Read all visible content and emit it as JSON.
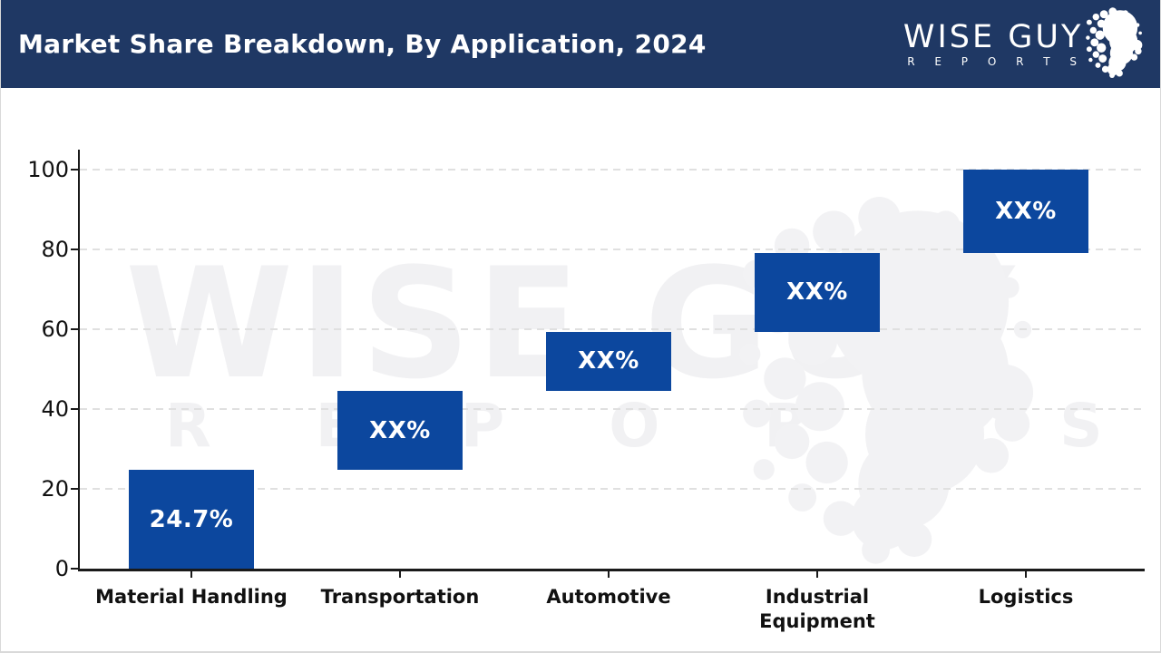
{
  "header": {
    "title": "Market Share Breakdown, By Application, 2024",
    "logo_line1": "WISE GUY",
    "logo_line2": "R E P O R T S"
  },
  "watermark": {
    "line1": "WISE GUY",
    "line2": "R E P O R T S"
  },
  "colors": {
    "header_bg": "#1f3864",
    "bar": "#0c479e",
    "grid": "#e0e0e0",
    "axis": "#1a1a1a",
    "tick_label": "#111111",
    "value_label": "#ffffff",
    "watermark": "#f1f1f3"
  },
  "chart_data": {
    "type": "bar",
    "subtype": "waterfall",
    "title": "Market Share Breakdown, By Application, 2024",
    "categories": [
      "Material Handling",
      "Transportation",
      "Automotive",
      "Industrial Equipment",
      "Logistics"
    ],
    "segments": [
      {
        "category": "Material Handling",
        "start": 0,
        "end": 24.7,
        "value": 24.7,
        "label": "24.7%"
      },
      {
        "category": "Transportation",
        "start": 24.7,
        "end": 44.5,
        "value": 19.8,
        "label": "XX%"
      },
      {
        "category": "Automotive",
        "start": 44.5,
        "end": 59.4,
        "value": 14.9,
        "label": "XX%"
      },
      {
        "category": "Industrial Equipment",
        "start": 59.4,
        "end": 79.2,
        "value": 19.8,
        "label": "XX%"
      },
      {
        "category": "Logistics",
        "start": 79.2,
        "end": 100,
        "value": 20.8,
        "label": "XX%"
      }
    ],
    "y_ticks": [
      0,
      20,
      40,
      60,
      80,
      100
    ],
    "ylim": [
      0,
      100
    ],
    "xlabel": "",
    "ylabel": "",
    "grid": "horizontal-dashed",
    "legend": "none"
  }
}
